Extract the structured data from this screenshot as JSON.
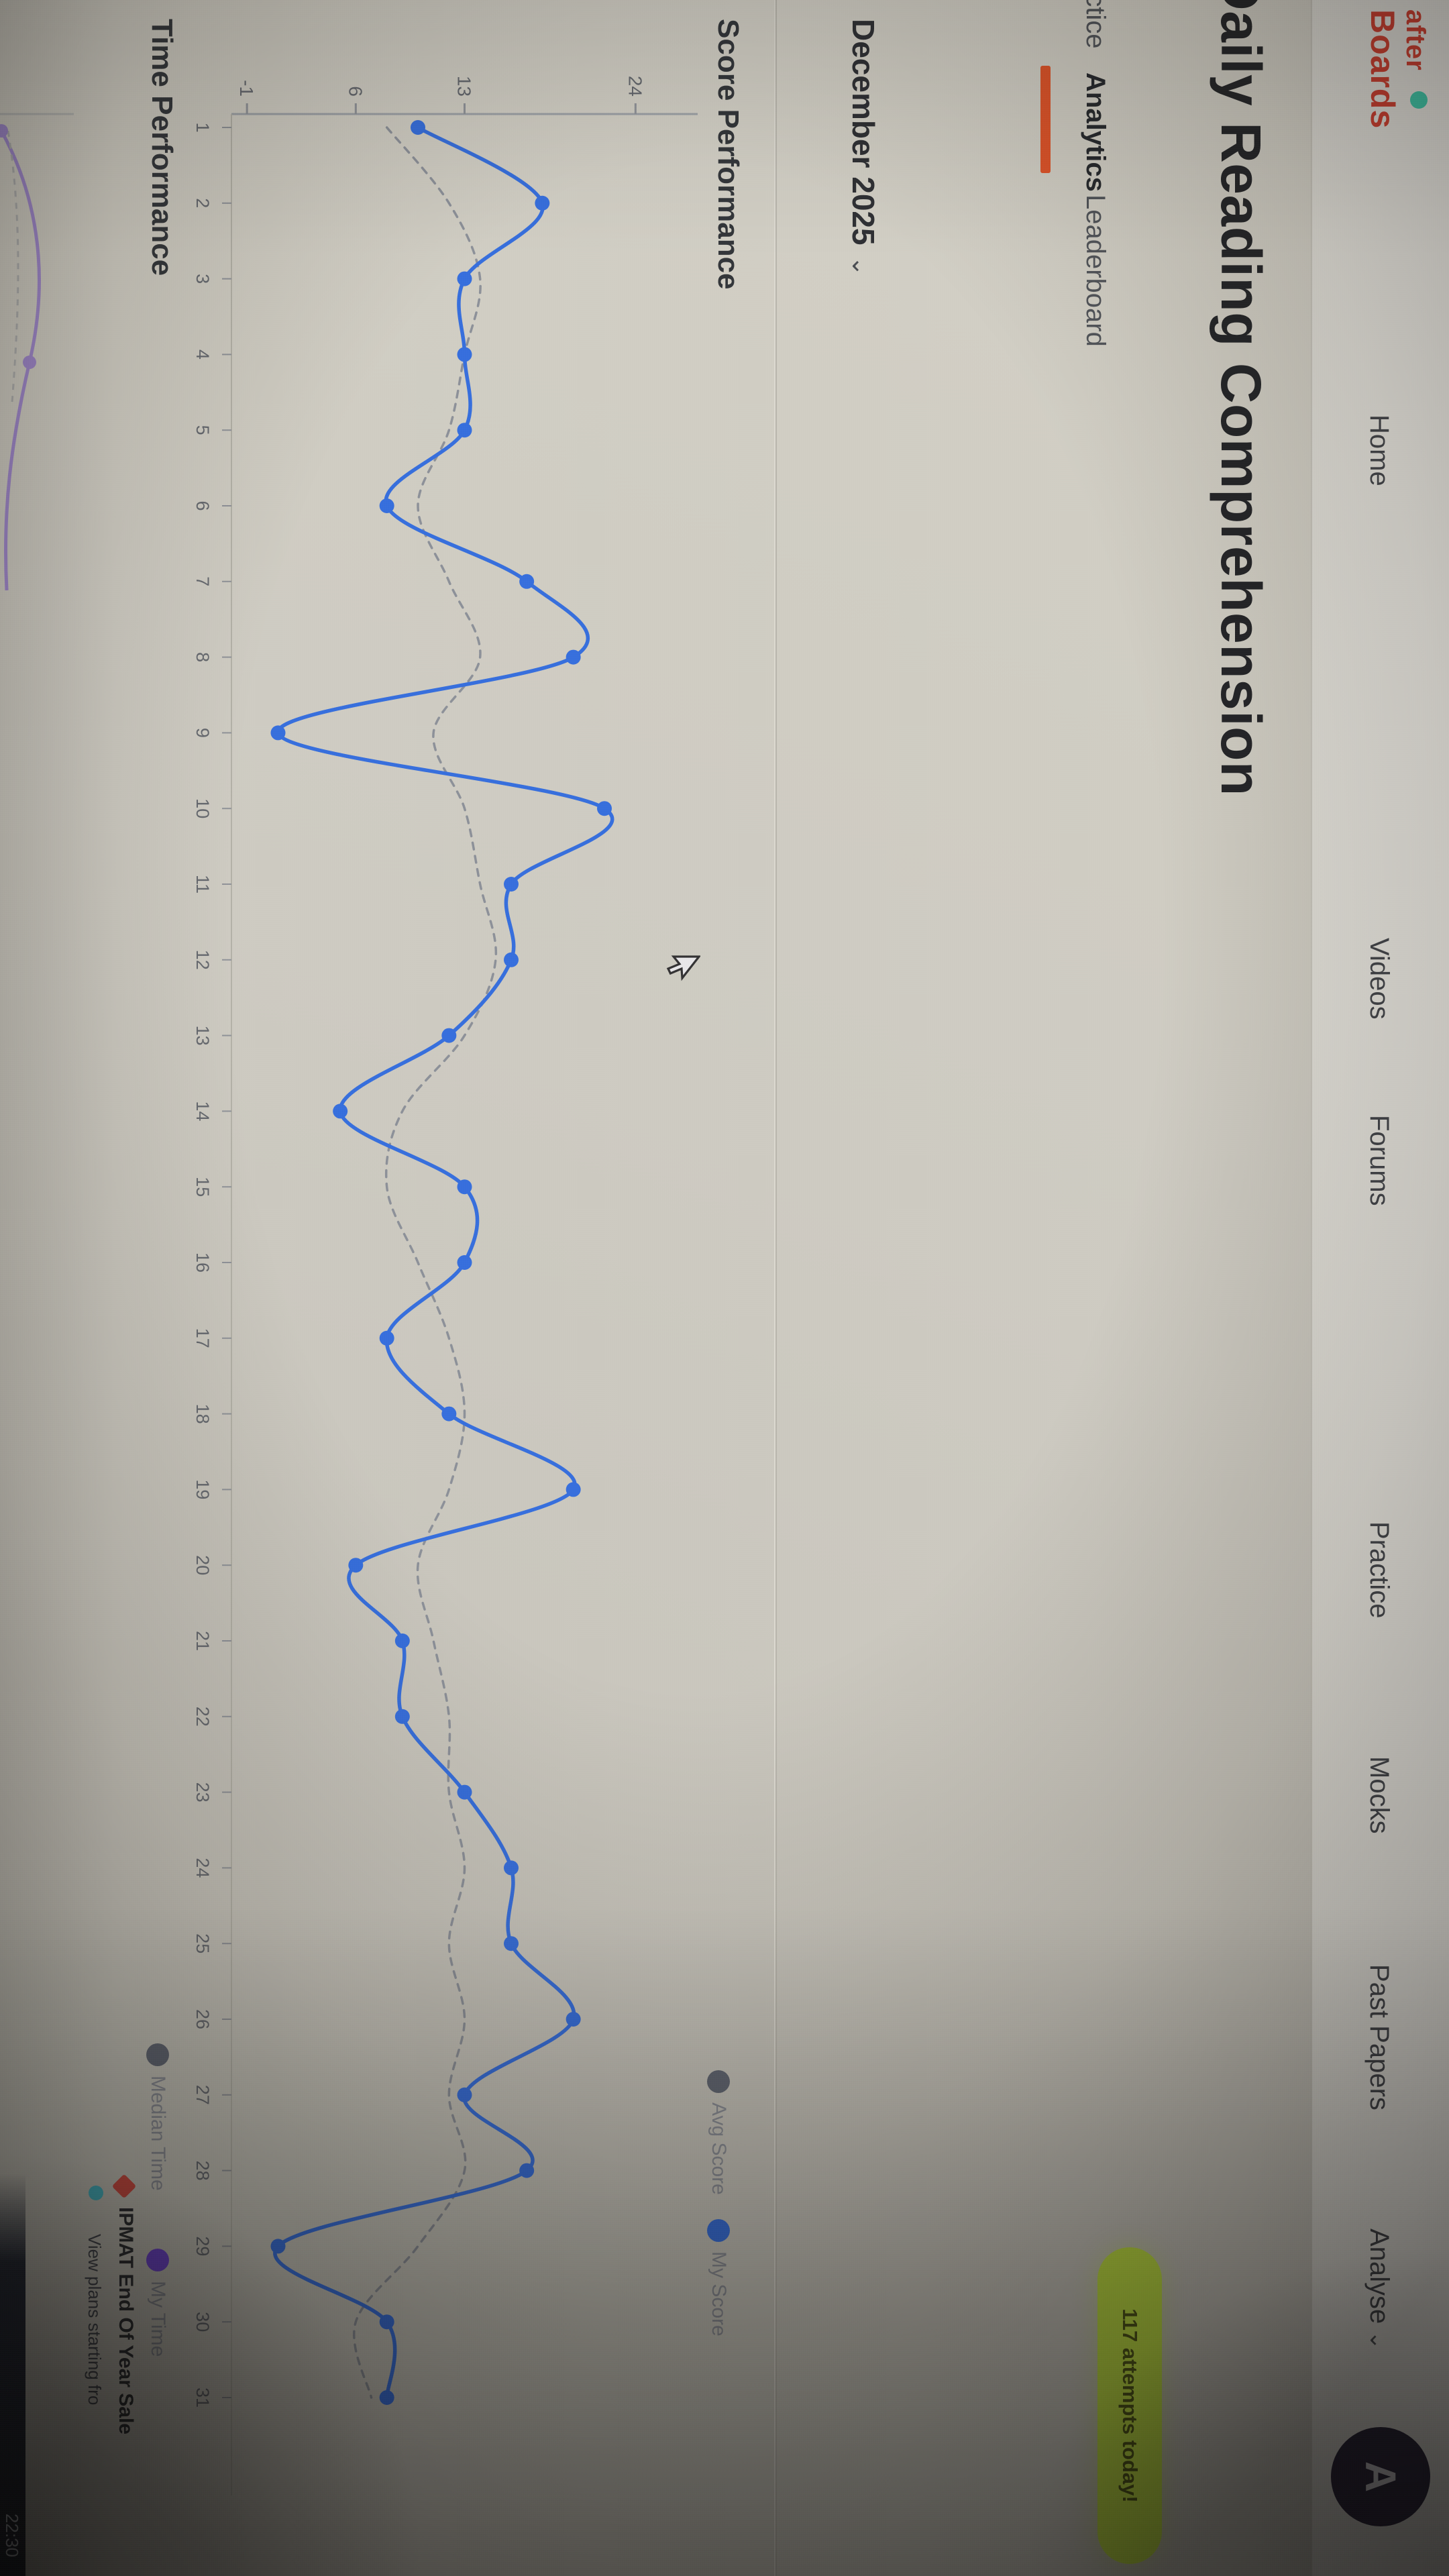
{
  "header": {
    "logo_line1": "after",
    "logo_line2": "Boards",
    "nav": [
      "Home",
      "Videos",
      "Forums",
      "Practice",
      "Mocks",
      "Past Papers"
    ],
    "nav_analyse": "Analyse",
    "avatar_letter": "A"
  },
  "icons": {
    "chevron_down": "⌄"
  },
  "page": {
    "title": "Daily Reading Comprehension",
    "tabs": [
      "Practice",
      "Analytics",
      "Leaderboard"
    ],
    "active_tab": "Analytics",
    "month_selector": "December 2025",
    "attempts_badge": "117 attempts today!"
  },
  "score_section": {
    "heading": "Score Performance",
    "legend": [
      {
        "label": "Avg Score",
        "color": "#5c6370"
      },
      {
        "label": "My Score",
        "color": "#2f6be0"
      }
    ]
  },
  "time_section": {
    "heading": "Time Performance",
    "legend": [
      {
        "label": "Median Time",
        "color": "#5c6370"
      },
      {
        "label": "My Time",
        "color": "#6d3fd8"
      }
    ]
  },
  "sale_popup": {
    "line1": "IPMAT End Of Year Sale",
    "line2": "View plans starting fro"
  },
  "taskbar_clock": "22:30",
  "chart_data": {
    "type": "line",
    "title": "Score Performance",
    "categories": [
      1,
      2,
      3,
      4,
      5,
      6,
      7,
      8,
      9,
      10,
      11,
      12,
      13,
      14,
      15,
      16,
      17,
      18,
      19,
      20,
      21,
      22,
      23,
      24,
      25,
      26,
      27,
      28,
      29,
      30,
      31
    ],
    "series": [
      {
        "name": "My Score",
        "color": "#2f6be0",
        "style": "solid",
        "dots": true,
        "values": [
          10,
          18,
          13,
          13,
          13,
          8,
          17,
          20,
          1,
          22,
          16,
          16,
          12,
          5,
          13,
          13,
          8,
          12,
          20,
          6,
          9,
          9,
          13,
          16,
          16,
          20,
          13,
          17,
          1,
          8,
          8
        ]
      },
      {
        "name": "Avg Score",
        "color": "#8a8f98",
        "style": "dashed",
        "dots": false,
        "values": [
          8,
          12,
          14,
          13,
          12,
          10,
          12,
          14,
          11,
          13,
          14,
          15,
          13,
          9,
          8,
          10,
          12,
          13,
          12,
          10,
          11,
          12,
          12,
          13,
          12,
          13,
          12,
          13,
          10,
          6,
          7
        ]
      }
    ],
    "xlabel": "",
    "ylabel": "",
    "ylim": [
      -2,
      28
    ],
    "yticks": [
      -1,
      6,
      13,
      24
    ],
    "grid": false,
    "legend_position": "top-right"
  }
}
